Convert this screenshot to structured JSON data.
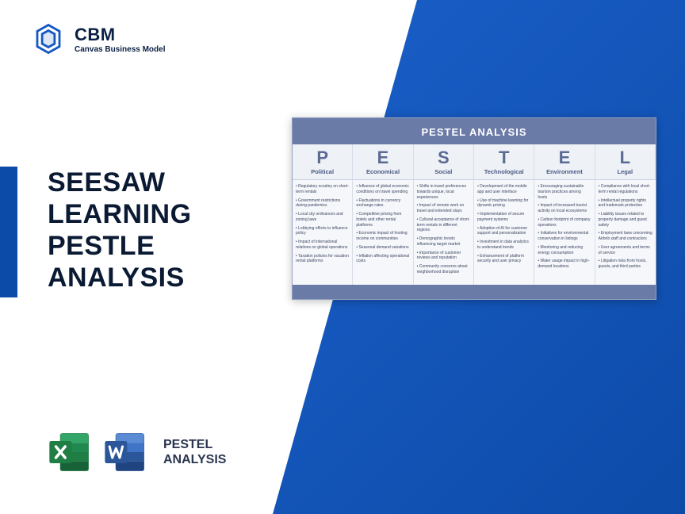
{
  "logo": {
    "title": "CBM",
    "subtitle": "Canvas Business Model"
  },
  "headline": {
    "l1": "SEESAW",
    "l2": "LEARNING",
    "l3": "PESTLE",
    "l4": "ANALYSIS"
  },
  "bottom_label": {
    "l1": "PESTEL",
    "l2": "ANALYSIS"
  },
  "card": {
    "title": "PESTEL ANALYSIS",
    "columns": [
      {
        "letter": "P",
        "name": "Political",
        "items": [
          "Regulatory scrutiny on short-term rentals",
          "Government restrictions during pandemics",
          "Local city ordinances and zoning laws",
          "Lobbying efforts to influence policy",
          "Impact of international relations on global operations",
          "Taxation policies for vacation rental platforms"
        ]
      },
      {
        "letter": "E",
        "name": "Economical",
        "items": [
          "Influence of global economic conditions on travel spending",
          "Fluctuations in currency exchange rates",
          "Competitive pricing from hotels and other rental platforms",
          "Economic impact of hosting income on communities",
          "Seasonal demand variations",
          "Inflation affecting operational costs"
        ]
      },
      {
        "letter": "S",
        "name": "Social",
        "items": [
          "Shifts in travel preferences towards unique, local experiences",
          "Impact of remote work on travel and extended stays",
          "Cultural acceptance of short-term rentals in different regions",
          "Demographic trends influencing target market",
          "Importance of customer reviews and reputation",
          "Community concerns about neighborhood disruption"
        ]
      },
      {
        "letter": "T",
        "name": "Technological",
        "items": [
          "Development of the mobile app and user interface",
          "Use of machine learning for dynamic pricing",
          "Implementation of secure payment systems",
          "Adoption of AI for customer support and personalization",
          "Investment in data analytics to understand trends",
          "Enhancement of platform security and user privacy"
        ]
      },
      {
        "letter": "E",
        "name": "Environment",
        "items": [
          "Encouraging sustainable tourism practices among hosts",
          "Impact of increased tourist activity on local ecosystems",
          "Carbon footprint of company operations",
          "Initiatives for environmental conservation in listings",
          "Monitoring and reducing energy consumption",
          "Water usage impact in high-demand locations"
        ]
      },
      {
        "letter": "L",
        "name": "Legal",
        "items": [
          "Compliance with local short-term rental regulations",
          "Intellectual property rights and trademark protection",
          "Liability issues related to property damage and guest safety",
          "Employment laws concerning Airbnb staff and contractors",
          "User agreements and terms of service",
          "Litigation risks from hosts, guests, and third parties"
        ]
      }
    ]
  },
  "colors": {
    "brand_blue": "#0d4ba8",
    "card_header": "#6b7ba8",
    "excel_green": "#1e7e44",
    "word_blue": "#2b579a"
  }
}
